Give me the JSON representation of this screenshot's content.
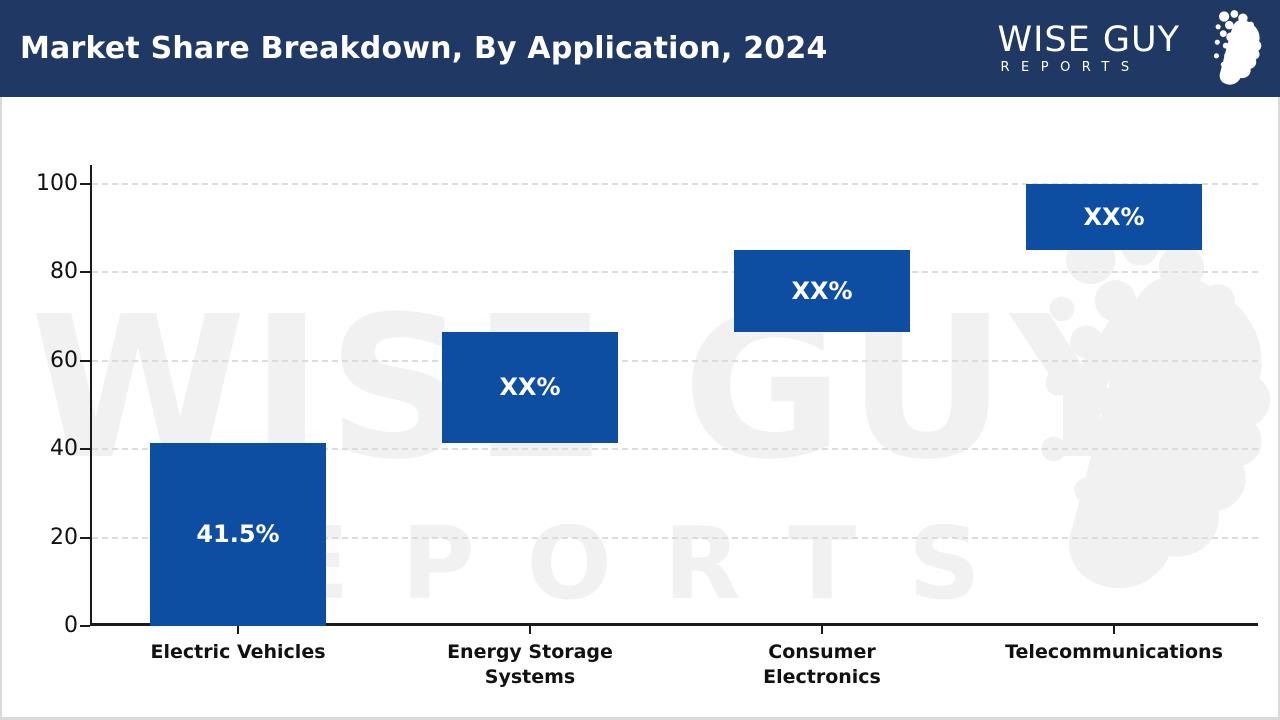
{
  "header": {
    "title": "Market Share Breakdown, By Application, 2024",
    "logo": {
      "line1": "WISE GUY",
      "line2": "REPORTS"
    }
  },
  "watermark": {
    "line1": "WISE GUY",
    "line2": "REPORTS"
  },
  "chart_data": {
    "type": "bar",
    "subtype": "waterfall-floating-segments",
    "title": "Market Share Breakdown, By Application, 2024",
    "categories": [
      "Electric Vehicles",
      "Energy Storage Systems",
      "Consumer Electronics",
      "Telecommunications"
    ],
    "category_lines": [
      [
        "Electric Vehicles"
      ],
      [
        "Energy Storage",
        "Systems"
      ],
      [
        "Consumer",
        "Electronics"
      ],
      [
        "Telecommunications"
      ]
    ],
    "segments": [
      {
        "category": "Electric Vehicles",
        "start": 0,
        "end": 41.5,
        "label": "41.5%"
      },
      {
        "category": "Energy Storage Systems",
        "start": 41.5,
        "end": 66.5,
        "label": "XX%"
      },
      {
        "category": "Consumer Electronics",
        "start": 66.5,
        "end": 85,
        "label": "XX%"
      },
      {
        "category": "Telecommunications",
        "start": 85,
        "end": 100,
        "label": "XX%"
      }
    ],
    "y_ticks": [
      0,
      20,
      40,
      60,
      80,
      100
    ],
    "ylim": [
      0,
      105
    ],
    "xlabel": "",
    "ylabel": "",
    "grid": "horizontal-dashed",
    "legend": "none"
  },
  "colors": {
    "header_bg": "#203864",
    "header_text": "#ffffff",
    "bar": "#0d4da2",
    "bar_label": "#ffffff",
    "axis": "#1a1a1a",
    "grid": "#dcdcdc",
    "watermark": "#f1f1f1",
    "border": "#d9d9d9"
  }
}
